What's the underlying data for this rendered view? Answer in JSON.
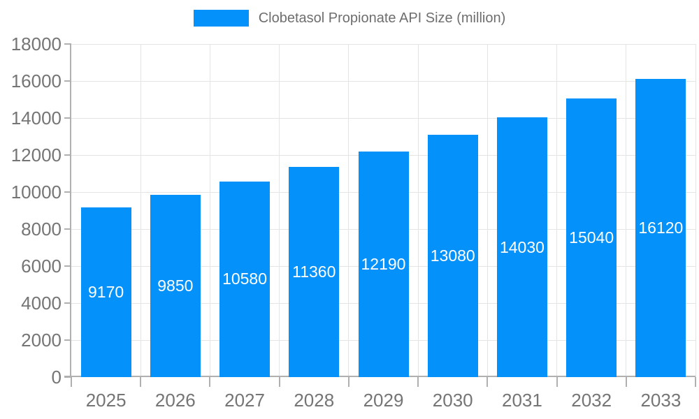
{
  "legend": {
    "label": "Clobetasol Propionate API Size (million)",
    "swatch_color": "#0591fa"
  },
  "chart_data": {
    "type": "bar",
    "title": "Clobetasol Propionate API Size (million)",
    "categories": [
      "2025",
      "2026",
      "2027",
      "2028",
      "2029",
      "2030",
      "2031",
      "2032",
      "2033"
    ],
    "values": [
      9170,
      9850,
      10580,
      11360,
      12190,
      13080,
      14030,
      15040,
      16120
    ],
    "value_labels": [
      "9170",
      "9850",
      "10580",
      "11360",
      "12190",
      "13080",
      "14030",
      "15040",
      "16120"
    ],
    "xlabel": "",
    "ylabel": "",
    "ylim": [
      0,
      18000
    ],
    "ytick_step": 2000,
    "ytick_labels": [
      "0",
      "2000",
      "4000",
      "6000",
      "8000",
      "10000",
      "12000",
      "14000",
      "16000",
      "18000"
    ],
    "grid": true,
    "legend_position": "top-center",
    "colors": {
      "bar": "#0591fa",
      "value_label": "#ffffff",
      "axis_label": "#757575",
      "legend_label": "#6e6e6e",
      "gridline": "#e4e4e4",
      "axis_line": "#b0b0b0",
      "background": "#ffffff"
    }
  }
}
